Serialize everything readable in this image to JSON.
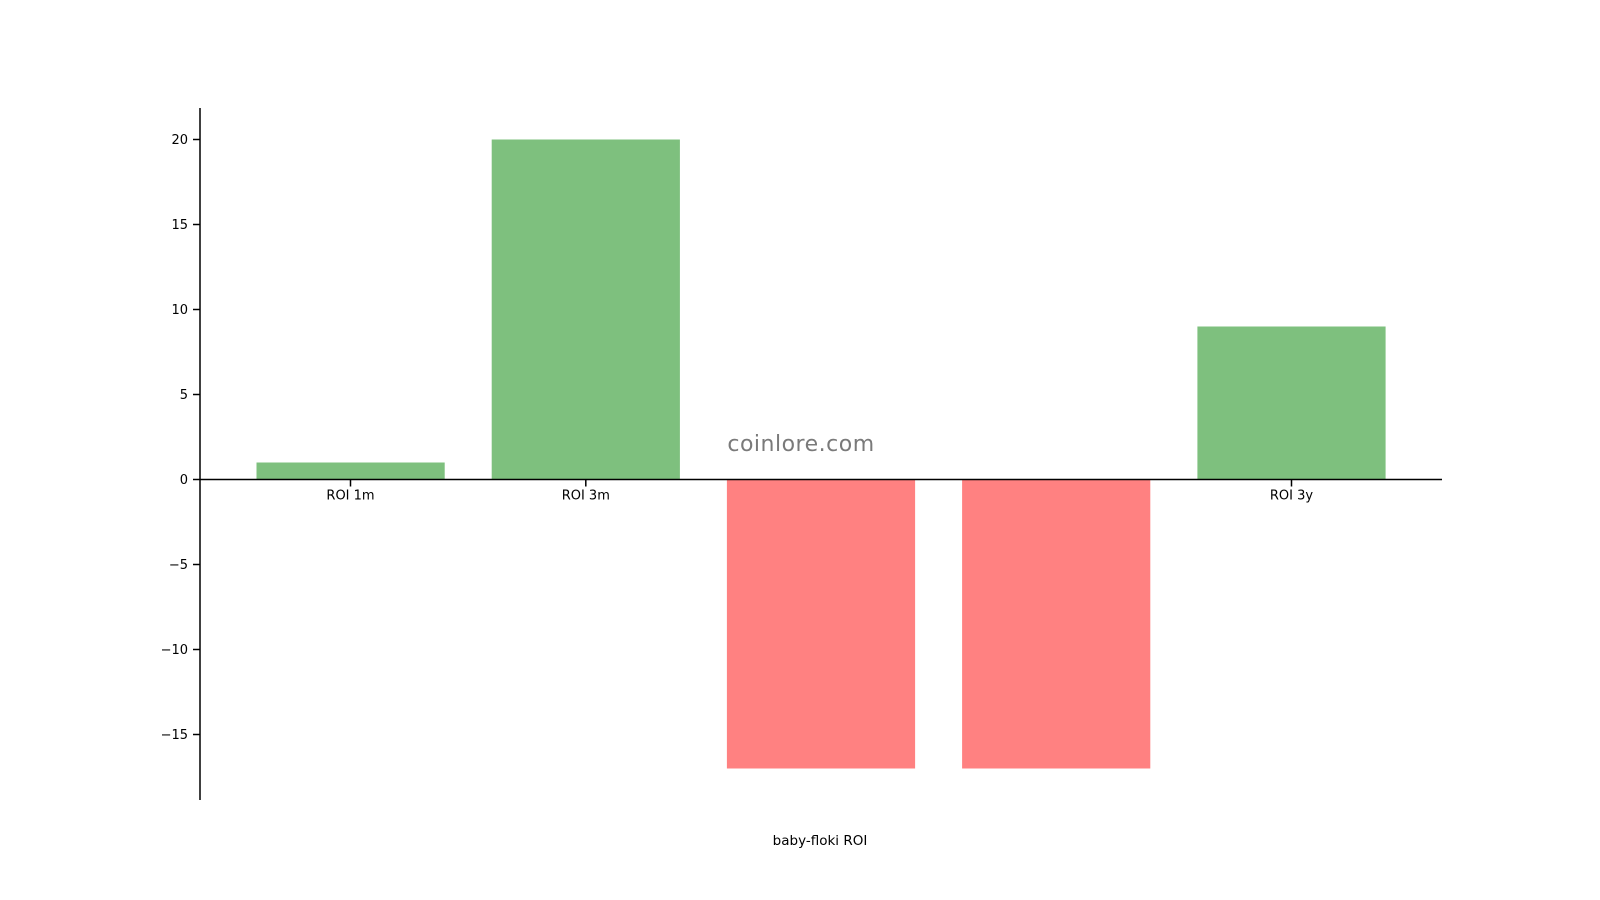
{
  "chart_data": {
    "type": "bar",
    "title": "baby-floki ROI",
    "watermark": "coinlore.com",
    "categories": [
      "ROI 1m",
      "ROI 3m",
      "",
      "",
      "ROI 3y"
    ],
    "values": [
      1,
      20,
      -17,
      -17,
      9
    ],
    "bar_colors": [
      "#7ec07e",
      "#7ec07e",
      "#ff8181",
      "#ff8181",
      "#7ec07e"
    ],
    "positive_color": "#7ec07e",
    "negative_color": "#ff8181",
    "y_ticks": [
      20,
      15,
      10,
      5,
      0,
      -5,
      -10,
      -15
    ],
    "ylim": [
      -18.85,
      21.85
    ],
    "xlim": [
      -0.64,
      4.64
    ],
    "bar_width_fraction": 0.8,
    "grid": false,
    "legend": "none",
    "xlabel": "",
    "ylabel": "",
    "axis_color": "#000000",
    "tick_text_color": "#000000",
    "watermark_color": "#7a7a7a",
    "background_color": "#ffffff"
  }
}
